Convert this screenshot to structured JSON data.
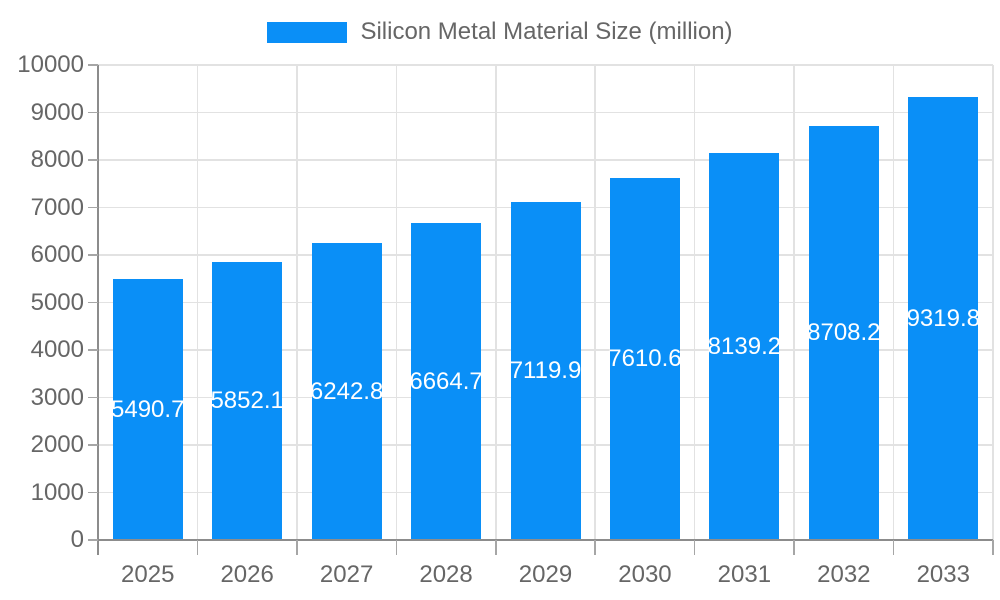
{
  "chart_data": {
    "type": "bar",
    "title": "Silicon Metal Material Size (million)",
    "categories": [
      "2025",
      "2026",
      "2027",
      "2028",
      "2029",
      "2030",
      "2031",
      "2032",
      "2033"
    ],
    "values": [
      5490.7,
      5852.1,
      6242.8,
      6664.7,
      7119.9,
      7610.6,
      8139.2,
      8708.2,
      9319.8
    ],
    "ylim": [
      0,
      10000
    ],
    "ytick_step": 1000,
    "grid": true,
    "legend_position": "top",
    "colors": {
      "bar": "#0a8ff7",
      "grid": "#e2e2e2",
      "axis": "#8c8c8c",
      "tick": "#a6a6a6",
      "text": "#666666",
      "value_label": "#ffffff",
      "background": "#ffffff"
    }
  }
}
